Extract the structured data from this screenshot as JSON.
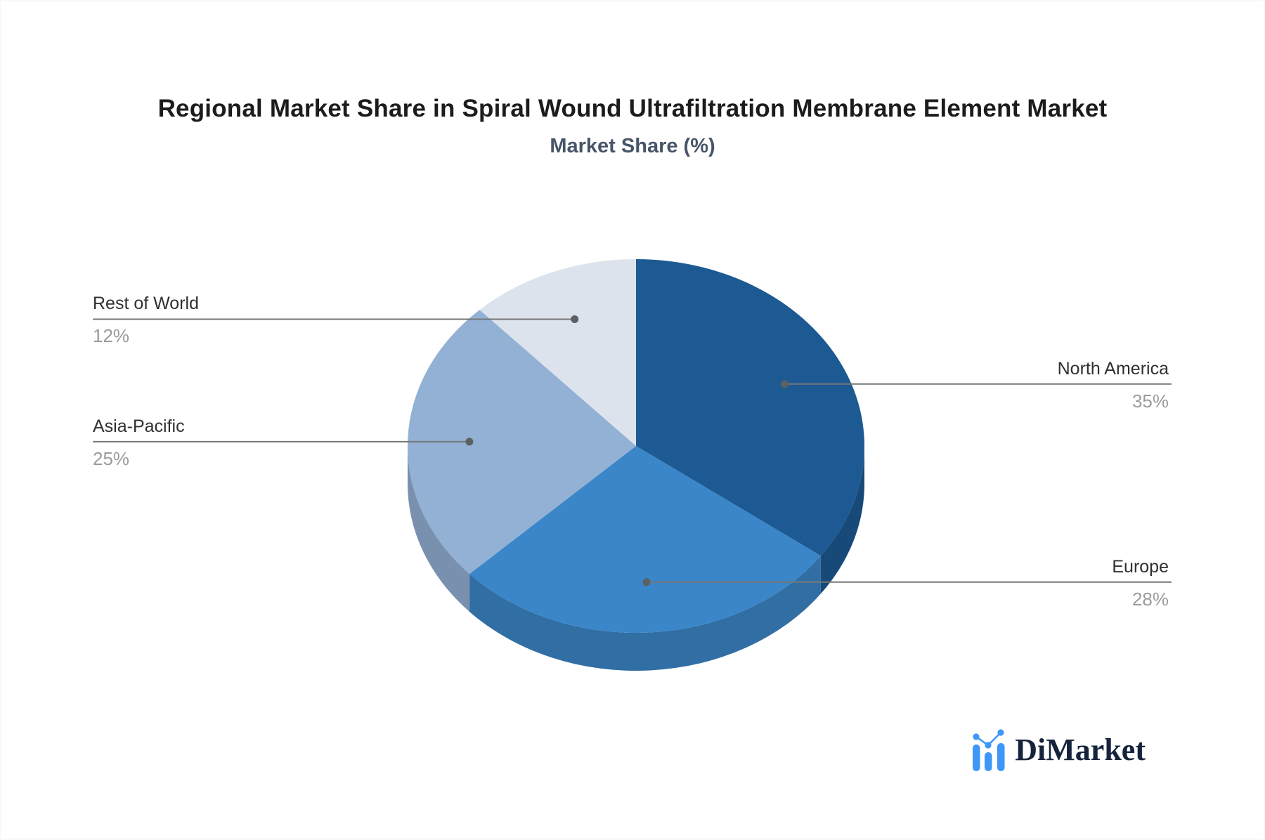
{
  "chart_data": {
    "type": "pie",
    "three_d": true,
    "start_angle_deg": 0,
    "direction": "clockwise",
    "title": "Regional Market Share in Spiral Wound Ultrafiltration Membrane Element Market",
    "subtitle": "Market Share (%)",
    "unit": "%",
    "slices": [
      {
        "label": "North America",
        "value": 35,
        "pct_label": "35%",
        "color": "#1d5a93",
        "label_side": "right"
      },
      {
        "label": "Europe",
        "value": 28,
        "pct_label": "28%",
        "color": "#3a86c8",
        "label_side": "right"
      },
      {
        "label": "Asia-Pacific",
        "value": 25,
        "pct_label": "25%",
        "color": "#93b1d5",
        "label_side": "left"
      },
      {
        "label": "Rest of World",
        "value": 12,
        "pct_label": "12%",
        "color": "#dce3ed",
        "label_side": "left"
      }
    ],
    "legend_position": "none",
    "colors": {
      "leader_line": "#767676",
      "leader_dot": "#5d6063",
      "title": "#1c1c1c",
      "subtitle": "#475569",
      "label_text": "#303030",
      "pct_text": "#9b9b9b",
      "background": "#ffffff"
    }
  },
  "logo": {
    "text": "DiMarket",
    "icon": "bar-line-chart-icon",
    "text_color": "#15233c",
    "icon_color": "#3e97f7"
  }
}
